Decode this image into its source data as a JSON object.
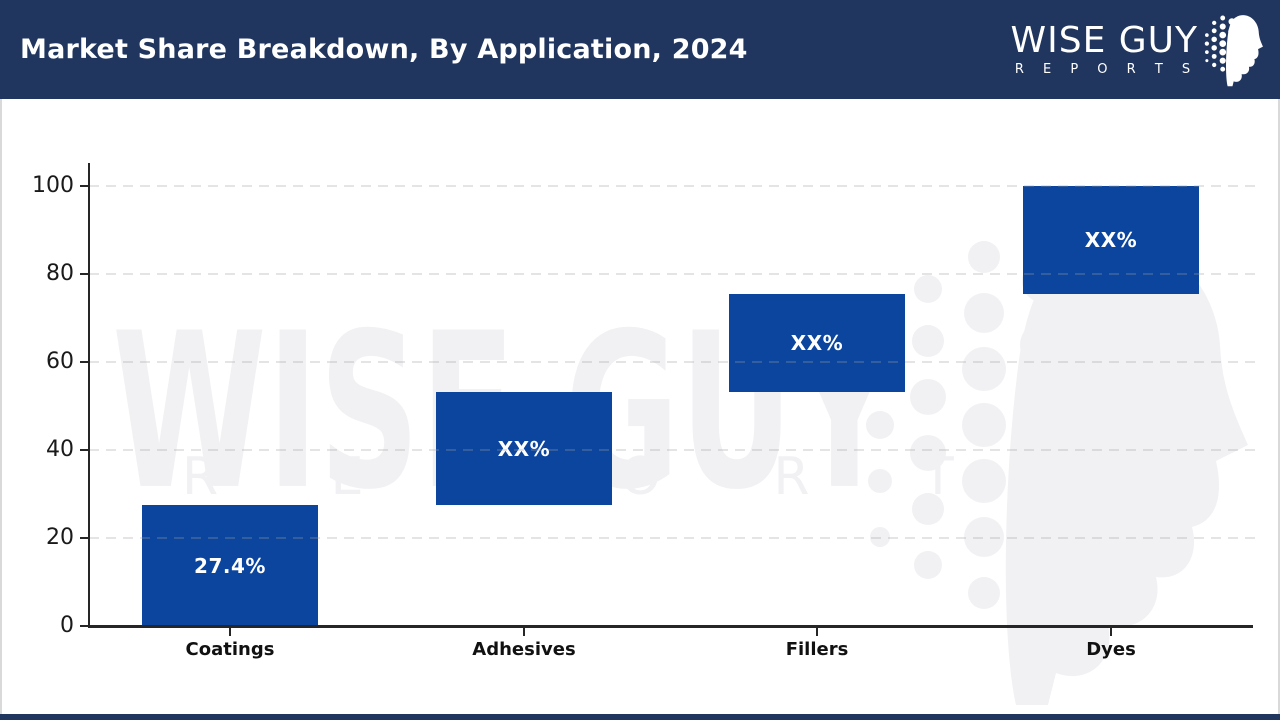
{
  "header": {
    "title": "Market Share Breakdown, By Application, 2024",
    "logo": {
      "line1": "WISE GUY",
      "line2": "R E P O R T S"
    }
  },
  "watermark": {
    "line1": "WISE GUY",
    "line2": "R E P O R T S"
  },
  "colors": {
    "header_bg": "#21365e",
    "bar": "#0b459d",
    "axis": "#262626",
    "grid": "rgba(160,160,160,0.28)",
    "watermark": "#f1f1f4",
    "bar_label": "#ffffff"
  },
  "chart_data": {
    "type": "bar",
    "subtype": "waterfall",
    "title": "Market Share Breakdown, By Application, 2024",
    "xlabel": "",
    "ylabel": "",
    "categories": [
      "Coatings",
      "Adhesives",
      "Fillers",
      "Dyes"
    ],
    "segments": [
      {
        "category": "Coatings",
        "start": 0,
        "end": 27.4,
        "label": "27.4%"
      },
      {
        "category": "Adhesives",
        "start": 27.4,
        "end": 53.2,
        "label": "XX%"
      },
      {
        "category": "Fillers",
        "start": 53.2,
        "end": 75.4,
        "label": "XX%"
      },
      {
        "category": "Dyes",
        "start": 75.4,
        "end": 100,
        "label": "XX%"
      }
    ],
    "ylim": [
      0,
      100
    ],
    "yticks": [
      0,
      20,
      40,
      60,
      80,
      100
    ],
    "grid": true,
    "grid_style": "dashed",
    "legend": false
  }
}
